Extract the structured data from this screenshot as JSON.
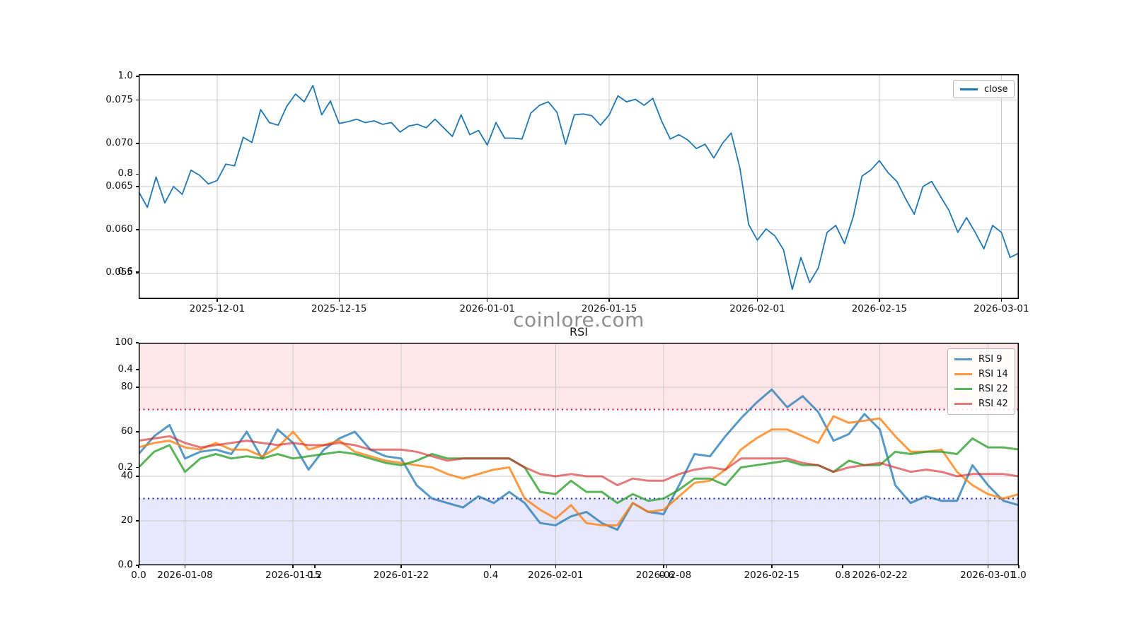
{
  "watermark": "coinlore.com",
  "chart_data": [
    {
      "id": "price",
      "type": "line",
      "title": "",
      "xlabel": "",
      "ylabel": "",
      "legend_position": "upper right",
      "grid": true,
      "x_start_date": "2025-11-22",
      "x_step": "1 day",
      "x_span_days": 101,
      "x_tick_labels": [
        "2025-12-01",
        "2025-12-15",
        "2026-01-01",
        "2026-01-15",
        "2026-02-01",
        "2026-02-15",
        "2026-03-01"
      ],
      "x_tick_days": [
        9,
        23,
        40,
        54,
        71,
        85,
        99
      ],
      "ylim": [
        0.052,
        0.078
      ],
      "y_ticks": [
        {
          "v": 0.075,
          "label": "0.075"
        },
        {
          "v": 0.07,
          "label": "0.070"
        },
        {
          "v": 0.065,
          "label": "0.065"
        },
        {
          "v": 0.06,
          "label": "0.060"
        },
        {
          "v": 0.055,
          "label": "0.055"
        }
      ],
      "series": [
        {
          "name": "close",
          "color": "#1f77b4",
          "width": 1.8,
          "values": [
            0.0644,
            0.0626,
            0.0661,
            0.0631,
            0.065,
            0.0641,
            0.0669,
            0.0663,
            0.0653,
            0.0657,
            0.0676,
            0.0674,
            0.0707,
            0.0701,
            0.0739,
            0.0724,
            0.0721,
            0.0743,
            0.0757,
            0.0748,
            0.0767,
            0.0733,
            0.0749,
            0.0723,
            0.0725,
            0.0728,
            0.0724,
            0.0726,
            0.0722,
            0.0724,
            0.0713,
            0.072,
            0.0722,
            0.0718,
            0.0728,
            0.0718,
            0.0708,
            0.0733,
            0.071,
            0.0715,
            0.0698,
            0.0724,
            0.0706,
            0.0706,
            0.0705,
            0.0735,
            0.0744,
            0.0748,
            0.0736,
            0.0699,
            0.0733,
            0.0734,
            0.0732,
            0.0721,
            0.0733,
            0.0755,
            0.0748,
            0.0751,
            0.0744,
            0.0752,
            0.0726,
            0.0705,
            0.071,
            0.0704,
            0.0694,
            0.0699,
            0.0683,
            0.07,
            0.0712,
            0.0671,
            0.0606,
            0.0588,
            0.0601,
            0.0593,
            0.0577,
            0.0531,
            0.0568,
            0.0539,
            0.0556,
            0.0597,
            0.0605,
            0.0584,
            0.0615,
            0.0662,
            0.0669,
            0.068,
            0.0666,
            0.0656,
            0.0636,
            0.0618,
            0.065,
            0.0656,
            0.0639,
            0.0622,
            0.0597,
            0.0614,
            0.0597,
            0.0578,
            0.0605,
            0.0597,
            0.0568,
            0.0573
          ]
        }
      ]
    },
    {
      "id": "rsi",
      "type": "line",
      "title": "RSI",
      "xlabel": "",
      "ylabel": "",
      "legend_position": "upper right",
      "grid": true,
      "x_start_date": "2026-01-05",
      "x_step": "1 day",
      "x_span_days": 57,
      "x_tick_labels": [
        "2026-01-08",
        "2026-01-15",
        "2026-01-22",
        "2026-02-01",
        "2026-02-08",
        "2026-02-15",
        "2026-02-22",
        "2026-03-01"
      ],
      "x_tick_days": [
        3,
        10,
        17,
        27,
        34,
        41,
        48,
        55
      ],
      "ylim": [
        0,
        100
      ],
      "y_ticks": [
        {
          "v": 100,
          "label": "100"
        },
        {
          "v": 80,
          "label": "80"
        },
        {
          "v": 60,
          "label": "60"
        },
        {
          "v": 40,
          "label": "40"
        },
        {
          "v": 20,
          "label": "20"
        },
        {
          "v": 0,
          "label": "0"
        }
      ],
      "bands": [
        {
          "from": 70,
          "to": 100,
          "color": "rgba(244,67,84,0.13)",
          "meaning": "overbought"
        },
        {
          "from": 0,
          "to": 30,
          "color": "rgba(80,80,230,0.13)",
          "meaning": "oversold"
        }
      ],
      "hlines": [
        {
          "v": 70,
          "color": "#dc1440",
          "style": "dotted"
        },
        {
          "v": 30,
          "color": "#1e1ecf",
          "style": "dotted"
        }
      ],
      "series": [
        {
          "name": "RSI 9",
          "color": "rgba(31,119,180,0.75)",
          "width": 3,
          "values": [
            50,
            58,
            63,
            48,
            51,
            52,
            50,
            60,
            48,
            61,
            55,
            43,
            52,
            57,
            60,
            52,
            49,
            48,
            36,
            30,
            28,
            26,
            31,
            28,
            33,
            28,
            19,
            18,
            22,
            24,
            19,
            16,
            28,
            24,
            23,
            36,
            50,
            49,
            58,
            66,
            73,
            79,
            71,
            76,
            69,
            56,
            59,
            68,
            61,
            36,
            28,
            31,
            29,
            29,
            45,
            36,
            29,
            27
          ]
        },
        {
          "name": "RSI 14",
          "color": "rgba(255,127,14,0.78)",
          "width": 3,
          "values": [
            53,
            55,
            56,
            53,
            52,
            55,
            52,
            52,
            49,
            53,
            60,
            52,
            54,
            56,
            51,
            49,
            47,
            46,
            45,
            44,
            41,
            39,
            41,
            43,
            44,
            30,
            25,
            21,
            27,
            19,
            18,
            18,
            28,
            24,
            25,
            31,
            37,
            38,
            43,
            52,
            57,
            61,
            61,
            58,
            55,
            67,
            64,
            65,
            66,
            58,
            51,
            51,
            52,
            42,
            36,
            32,
            30,
            32
          ]
        },
        {
          "name": "RSI 22",
          "color": "rgba(44,160,44,0.78)",
          "width": 3,
          "values": [
            44,
            51,
            54,
            42,
            48,
            50,
            48,
            49,
            48,
            50,
            48,
            49,
            50,
            51,
            50,
            48,
            46,
            45,
            47,
            50,
            48,
            48,
            48,
            48,
            48,
            44,
            33,
            32,
            38,
            33,
            33,
            28,
            32,
            29,
            30,
            34,
            39,
            39,
            36,
            44,
            45,
            46,
            47,
            45,
            45,
            42,
            47,
            45,
            45,
            51,
            50,
            51,
            51,
            50,
            57,
            53,
            53,
            52
          ]
        },
        {
          "name": "RSI 42",
          "color": "rgba(214,39,40,0.62)",
          "width": 3,
          "values": [
            56,
            57,
            58,
            55,
            53,
            54,
            55,
            56,
            55,
            54,
            55,
            54,
            54,
            55,
            54,
            52,
            52,
            52,
            51,
            49,
            47,
            48,
            48,
            48,
            48,
            44,
            41,
            40,
            41,
            40,
            40,
            36,
            39,
            38,
            38,
            41,
            43,
            44,
            43,
            48,
            48,
            48,
            48,
            46,
            45,
            42,
            44,
            45,
            46,
            44,
            42,
            43,
            42,
            40,
            41,
            41,
            41,
            40
          ]
        }
      ]
    }
  ],
  "overlay_axis": {
    "x_ticks": [
      "0.0",
      "0.2",
      "0.4",
      "0.6",
      "0.8",
      "1.0"
    ],
    "y_ticks": [
      "1.0",
      "0.8",
      "0.6",
      "0.4",
      "0.2",
      "0.0"
    ]
  }
}
